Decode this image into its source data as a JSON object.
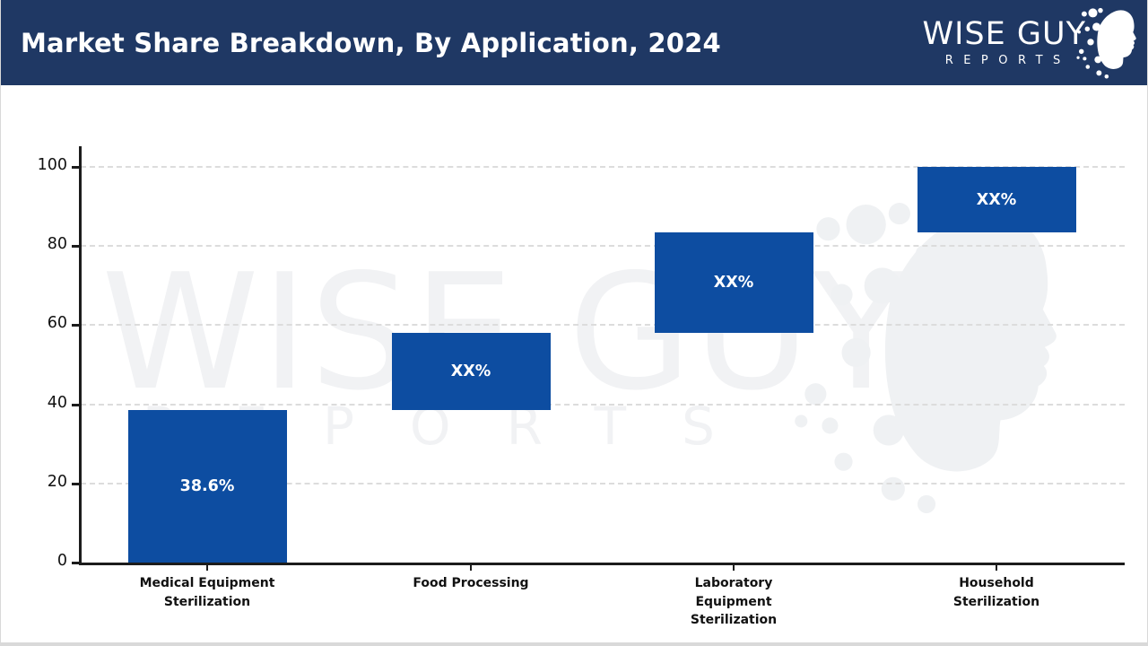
{
  "header": {
    "title": "Market Share Breakdown, By Application, 2024",
    "logo": {
      "wordmark": "WISE GUY",
      "subtext": "REPORTS"
    }
  },
  "watermark": {
    "wordmark": "WISE GUY",
    "subtext": "REPORTS"
  },
  "colors": {
    "header_bg": "#1f3864",
    "bar": "#0d4da1",
    "grid": "#dcdcdc",
    "axis": "#1c1c1c",
    "bar_label": "#ffffff",
    "watermark": "#f1f2f4"
  },
  "chart_data": {
    "type": "bar",
    "subtype": "waterfall",
    "title": "Market Share Breakdown, By Application, 2024",
    "categories": [
      "Medical Equipment\nSterilization",
      "Food Processing",
      "Laboratory\nEquipment\nSterilization",
      "Household\nSterilization"
    ],
    "bars": [
      {
        "start": 0,
        "end": 38.6,
        "label": "38.6%"
      },
      {
        "start": 38.6,
        "end": 58.0,
        "label": "XX%"
      },
      {
        "start": 58.0,
        "end": 83.5,
        "label": "XX%"
      },
      {
        "start": 83.5,
        "end": 100,
        "label": "XX%"
      }
    ],
    "xlabel": "",
    "ylabel": "",
    "ylim": [
      0,
      100
    ],
    "yticks": [
      0,
      20,
      40,
      60,
      80,
      100
    ],
    "grid": "horizontal-dashed",
    "legend": "none"
  }
}
